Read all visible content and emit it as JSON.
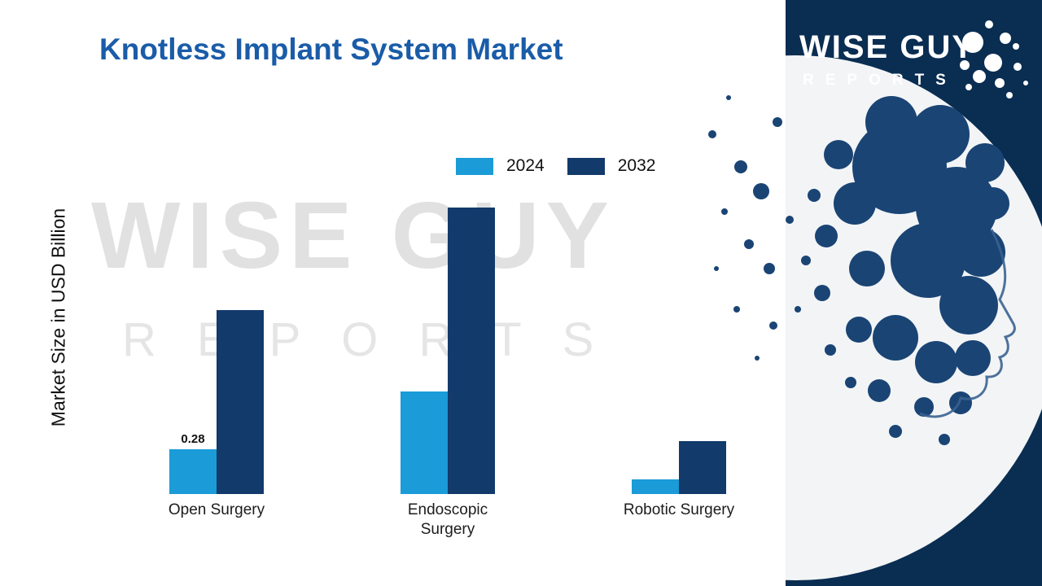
{
  "title": "Knotless Implant System Market",
  "y_axis_label": "Market Size in USD Billion",
  "watermark": {
    "line1": "WISE GUY",
    "line2": "REPORTS"
  },
  "logo": {
    "line1": "WISE GUY",
    "line2": "REPORTS"
  },
  "colors": {
    "title_blue": "#1a5ca8",
    "series_2024": "#1b9bd8",
    "series_2032": "#123a6b",
    "band_navy": "#0a2d52",
    "band_circle": "#f2f4f6",
    "watermark_gray": "#cccccc"
  },
  "chart_data": {
    "type": "bar",
    "title": "Knotless Implant System Market",
    "ylabel": "Market Size in USD Billion",
    "xlabel": "",
    "categories": [
      "Open Surgery",
      "Endoscopic Surgery",
      "Robotic Surgery"
    ],
    "series": [
      {
        "name": "2024",
        "color": "#1b9bd8",
        "values": [
          0.28,
          0.64,
          0.09
        ]
      },
      {
        "name": "2032",
        "color": "#123a6b",
        "values": [
          1.15,
          1.79,
          0.33
        ]
      }
    ],
    "ylim": [
      0,
      1.85
    ],
    "grid": false,
    "legend_position": "top",
    "data_labels": [
      {
        "series": "2024",
        "category": "Open Surgery",
        "text": "0.28"
      }
    ]
  }
}
